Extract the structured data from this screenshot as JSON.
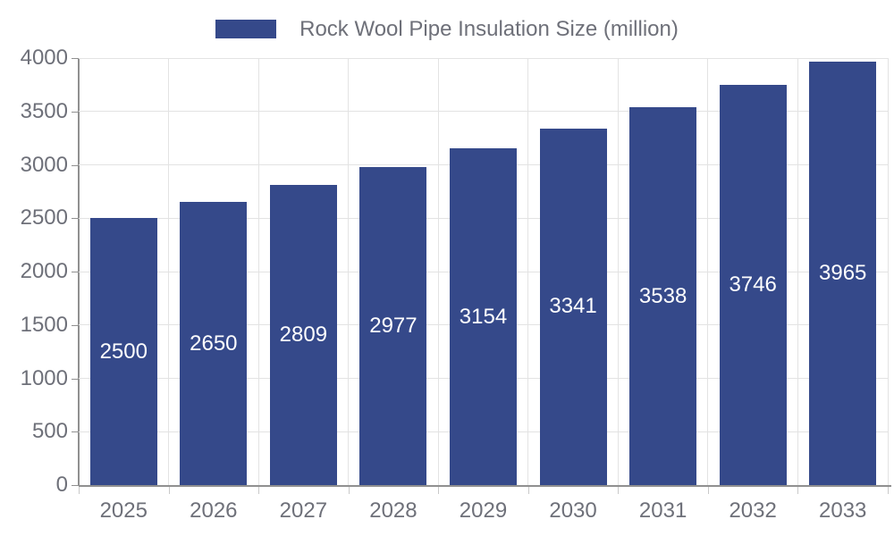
{
  "legend": {
    "label": "Rock Wool Pipe Insulation Size (million)"
  },
  "chart_data": {
    "type": "bar",
    "title": "Rock Wool Pipe Insulation Size (million)",
    "categories": [
      "2025",
      "2026",
      "2027",
      "2028",
      "2029",
      "2030",
      "2031",
      "2032",
      "2033"
    ],
    "values": [
      2500,
      2650,
      2809,
      2977,
      3154,
      3341,
      3538,
      3746,
      3965
    ],
    "xlabel": "",
    "ylabel": "",
    "ylim": [
      0,
      4000
    ],
    "yticks": [
      0,
      500,
      1000,
      1500,
      2000,
      2500,
      3000,
      3500,
      4000
    ],
    "grid": true,
    "legend_position": "top-center",
    "value_labels": "inside-center",
    "colors": {
      "bar": "#35498a",
      "value_label": "#ffffff",
      "axis_label": "#6e7079",
      "legend_label": "#6e7079",
      "grid_line": "#e3e3e3",
      "axis_line": "#909090",
      "x_tick": "#c9c9c9",
      "y_tick": "#909090",
      "background": "#ffffff"
    }
  }
}
